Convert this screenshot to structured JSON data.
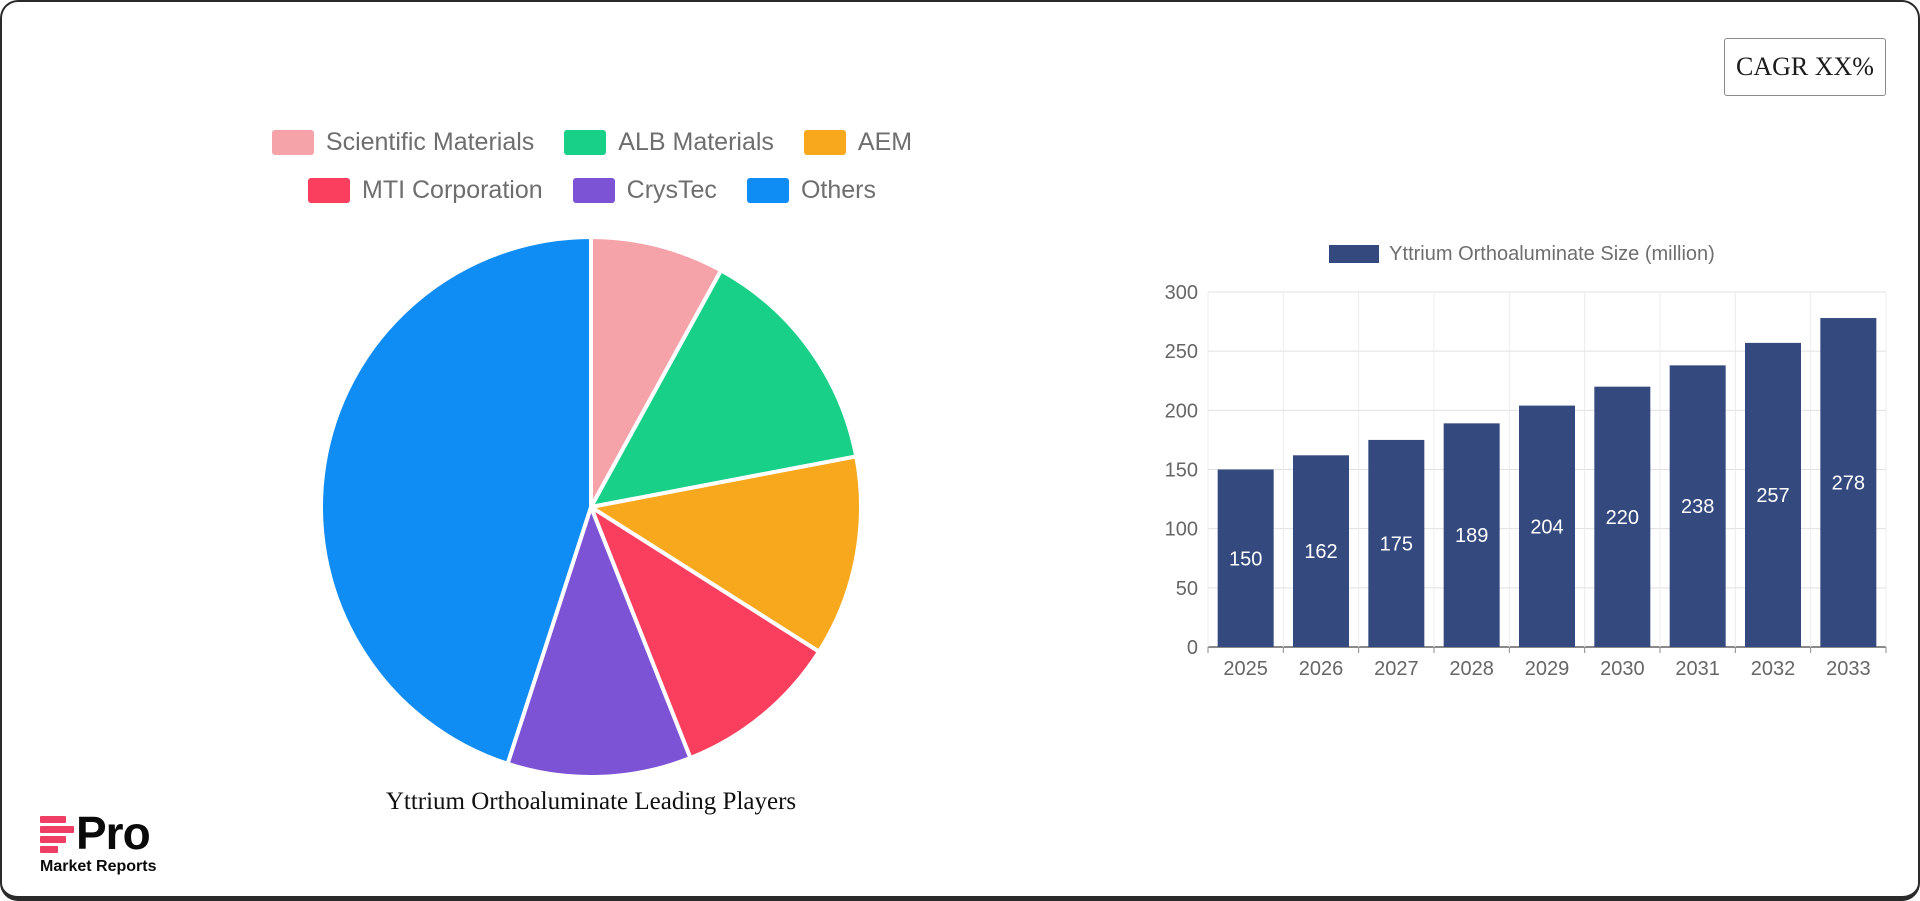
{
  "cagr_box": {
    "label": "CAGR XX%"
  },
  "logo": {
    "title": "Pro",
    "subtitle": "Market Reports"
  },
  "chart_data": [
    {
      "type": "pie",
      "title": "Yttrium Orthoaluminate Leading Players",
      "labels": [
        "Scientific Materials",
        "ALB Materials",
        "AEM",
        "MTI Corporation",
        "CrysTec",
        "Others"
      ],
      "values": [
        8,
        14,
        12,
        10,
        11,
        45
      ],
      "colors": [
        "#f5a3a8",
        "#19d089",
        "#f7a81c",
        "#fa3e5e",
        "#7d53d6",
        "#108df5"
      ],
      "legend_position": "top",
      "start_angle_deg": -90,
      "direction": "clockwise"
    },
    {
      "type": "bar",
      "title": "Yttrium Orthoaluminate Size (million)",
      "categories": [
        "2025",
        "2026",
        "2027",
        "2028",
        "2029",
        "2030",
        "2031",
        "2032",
        "2033"
      ],
      "values": [
        150,
        162,
        175,
        189,
        204,
        220,
        238,
        257,
        278
      ],
      "ylim": [
        0,
        300
      ],
      "yticks": [
        0,
        50,
        100,
        150,
        200,
        250,
        300
      ],
      "bar_color": "#344a7f",
      "value_label_color": "#ffffff",
      "axis_label_color": "#666666",
      "grid": true,
      "legend_position": "top"
    }
  ]
}
